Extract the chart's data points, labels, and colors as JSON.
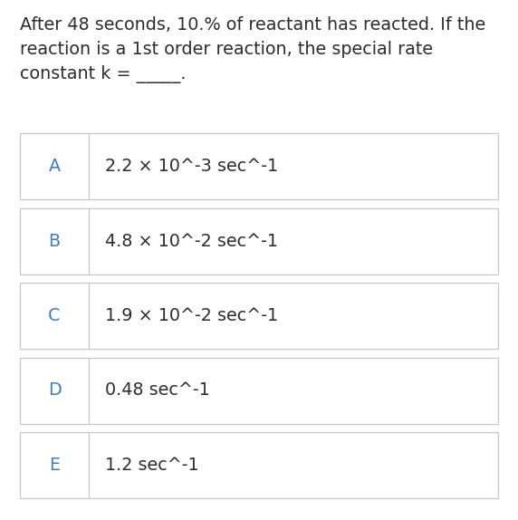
{
  "question_lines": [
    "After 48 seconds, 10.% of reactant has reacted. If the",
    "reaction is a 1st order reaction, the special rate",
    "constant k = _____."
  ],
  "options": [
    {
      "label": "A",
      "text": "2.2 × 10^-3 sec^-1"
    },
    {
      "label": "B",
      "text": "4.8 × 10^-2 sec^-1"
    },
    {
      "label": "C",
      "text": "1.9 × 10^-2 sec^-1"
    },
    {
      "label": "D",
      "text": "0.48 sec^-1"
    },
    {
      "label": "E",
      "text": "1.2 sec^-1"
    }
  ],
  "bg_color": "#ffffff",
  "text_color": "#2d2d2d",
  "blue_color": "#3d7ebf",
  "border_color": "#c8c8c8",
  "question_fontsize": 13.8,
  "option_fontsize": 13.8,
  "label_fontsize": 13.8,
  "fig_width": 5.72,
  "fig_height": 5.74,
  "dpi": 100
}
